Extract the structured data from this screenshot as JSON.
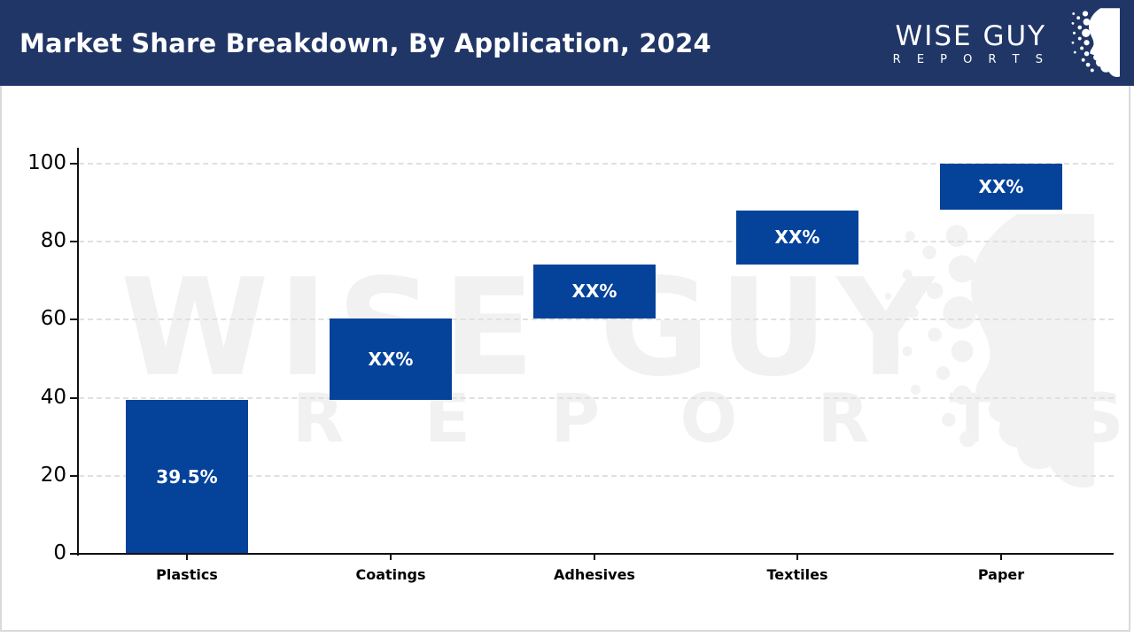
{
  "header": {
    "title": "Market Share Breakdown, By Application, 2024",
    "logo": {
      "line1": "WISE GUY",
      "line2": "R E P O R T S"
    }
  },
  "watermark": {
    "line1": "WISE GUY",
    "line2": "R E P O R T S"
  },
  "colors": {
    "header_bg": "#203667",
    "header_text": "#ffffff",
    "bar_fill": "#05429a",
    "bar_label_text": "#ffffff",
    "axis": "#111111",
    "gridline": "#e0e0e0",
    "frame_border": "#d9d9d9",
    "watermark": "#f1f1f1"
  },
  "chart_data": {
    "type": "bar",
    "subtype": "waterfall",
    "title": "Market Share Breakdown, By Application, 2024",
    "categories": [
      "Plastics",
      "Coatings",
      "Adhesives",
      "Textiles",
      "Paper"
    ],
    "bar_ranges": [
      [
        0,
        39.5
      ],
      [
        39.5,
        60.3
      ],
      [
        60.4,
        74.1
      ],
      [
        74.2,
        88.0
      ],
      [
        88.1,
        100
      ]
    ],
    "bar_labels": [
      "39.5%",
      "XX%",
      "XX%",
      "XX%",
      "XX%"
    ],
    "known_values": {
      "Plastics": 39.5
    },
    "xlabel": "",
    "ylabel": "",
    "ylim": [
      0,
      100
    ],
    "yticks": [
      0,
      20,
      40,
      60,
      80,
      100
    ],
    "grid": "dashed-horizontal",
    "legend": "none"
  }
}
